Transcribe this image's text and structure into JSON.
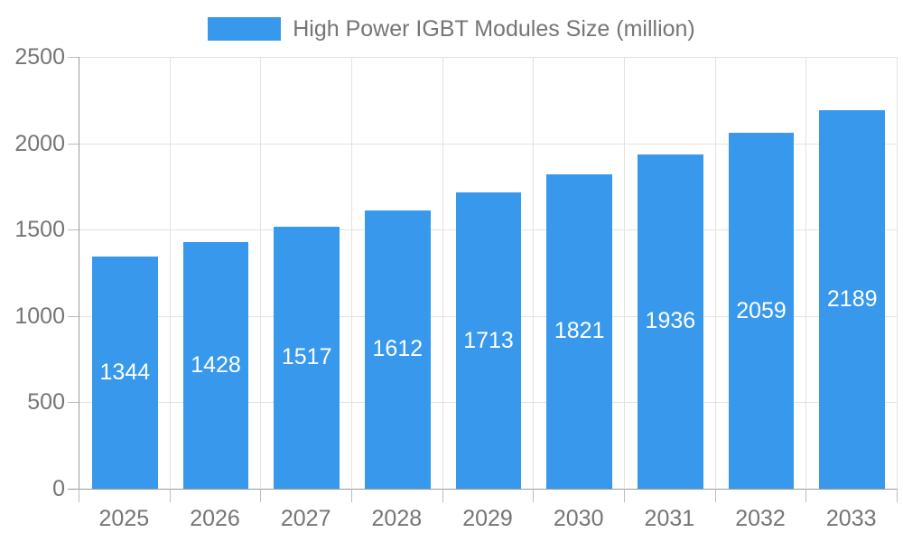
{
  "chart_data": {
    "type": "bar",
    "title": "High Power IGBT Modules Size (million)",
    "categories": [
      "2025",
      "2026",
      "2027",
      "2028",
      "2029",
      "2030",
      "2031",
      "2032",
      "2033"
    ],
    "values": [
      1344,
      1428,
      1517,
      1612,
      1713,
      1821,
      1936,
      2059,
      2189
    ],
    "xlabel": "",
    "ylabel": "",
    "ylim": [
      0,
      2500
    ],
    "yticks": [
      0,
      500,
      1000,
      1500,
      2000,
      2500
    ],
    "grid": true,
    "legend_position": "top-center",
    "value_labels": "inside-center-white"
  },
  "colors": {
    "bar": "#3899EC",
    "value_label": "#ffffff",
    "axis_line": "#999999",
    "gridline": "#e3e3e3",
    "tick_mark": "#bdbdbd",
    "tick_text": "#757575",
    "background": "#ffffff"
  }
}
